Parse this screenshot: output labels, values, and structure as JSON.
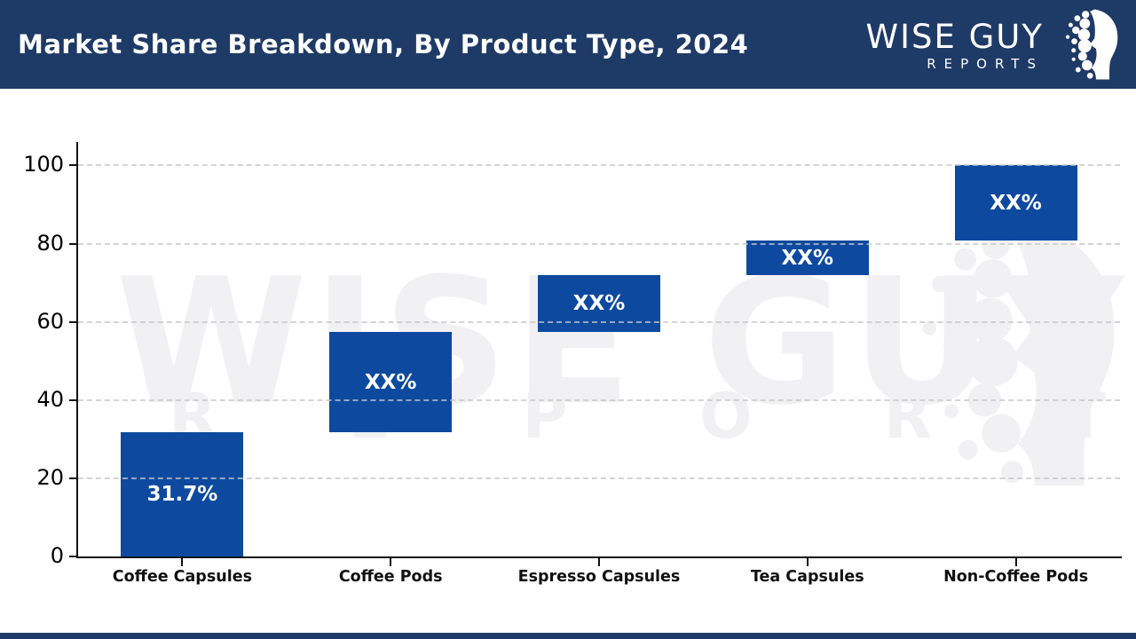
{
  "header": {
    "title": "Market Share Breakdown, By Product Type, 2024",
    "bg_color": "#1e3a66",
    "logo": {
      "line1": "WISE GUY",
      "line2": "REPORTS",
      "head_icon": "wiseguy-dotted-head"
    }
  },
  "watermark": {
    "line1": "WISE GUY",
    "line2": "REPORTS",
    "color": "#f1f1f4"
  },
  "chart_data": {
    "type": "bar",
    "subtype": "waterfall",
    "title": "Market Share Breakdown, By Product Type, 2024",
    "xlabel": "",
    "ylabel": "",
    "categories": [
      "Coffee Capsules",
      "Coffee Pods",
      "Espresso Capsules",
      "Tea Capsules",
      "Non-Coffee Pods"
    ],
    "segments": [
      {
        "category": "Coffee Capsules",
        "start": 0,
        "end": 31.7,
        "label": "31.7%"
      },
      {
        "category": "Coffee Pods",
        "start": 31.7,
        "end": 57.5,
        "label": "XX%"
      },
      {
        "category": "Espresso Capsules",
        "start": 57.5,
        "end": 71.9,
        "label": "XX%"
      },
      {
        "category": "Tea Capsules",
        "start": 71.9,
        "end": 80.7,
        "label": "XX%"
      },
      {
        "category": "Non-Coffee Pods",
        "start": 80.7,
        "end": 100,
        "label": "XX%"
      }
    ],
    "yticks": [
      0,
      20,
      40,
      60,
      80,
      100
    ],
    "ylim": [
      0,
      106
    ],
    "grid": "horizontal-dashed",
    "legend": "none",
    "bar_color": "#0d4a9f",
    "bar_label_color": "#ffffff"
  }
}
